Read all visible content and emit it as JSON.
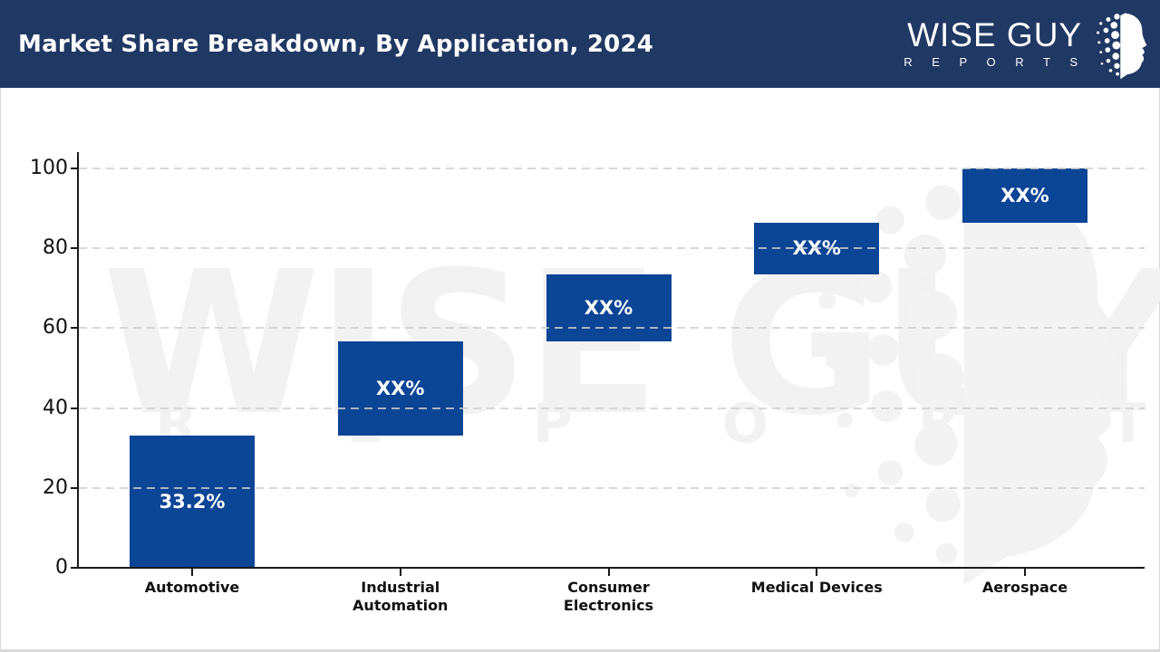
{
  "header": {
    "title": "Market Share Breakdown, By Application, 2024",
    "logo_line1": "WISE GUY",
    "logo_line2": "R E P O R T S"
  },
  "watermark": {
    "line1": "WISE GUY",
    "line2": "R E P O R T S"
  },
  "chart_data": {
    "type": "bar",
    "subtype": "waterfall",
    "title": "Market Share Breakdown, By Application, 2024",
    "xlabel": "",
    "ylabel": "",
    "ylim": [
      0,
      100
    ],
    "yticks": [
      0,
      20,
      40,
      60,
      80,
      100
    ],
    "grid": "horizontal dashed, drawn over bars",
    "legend": "none",
    "categories": [
      "Automotive",
      "Industrial Automation",
      "Consumer Electronics",
      "Medical Devices",
      "Aerospace"
    ],
    "segments": [
      {
        "category_lines": [
          "Automotive"
        ],
        "start": 0,
        "end": 33.2,
        "label": "33.2%"
      },
      {
        "category_lines": [
          "Industrial",
          "Automation"
        ],
        "start": 33.2,
        "end": 56.7,
        "label": "XX%"
      },
      {
        "category_lines": [
          "Consumer",
          "Electronics"
        ],
        "start": 56.7,
        "end": 73.5,
        "label": "XX%"
      },
      {
        "category_lines": [
          "Medical Devices"
        ],
        "start": 73.5,
        "end": 86.4,
        "label": "XX%"
      },
      {
        "category_lines": [
          "Aerospace"
        ],
        "start": 86.4,
        "end": 100,
        "label": "XX%"
      }
    ]
  },
  "colors": {
    "header_bg": "#203864",
    "bar": "#0b4596",
    "axis": "#1a1a1a",
    "grid": "#cfcfcf",
    "watermark": "#f2f2f3",
    "frame_border": "#d9d9d9"
  }
}
